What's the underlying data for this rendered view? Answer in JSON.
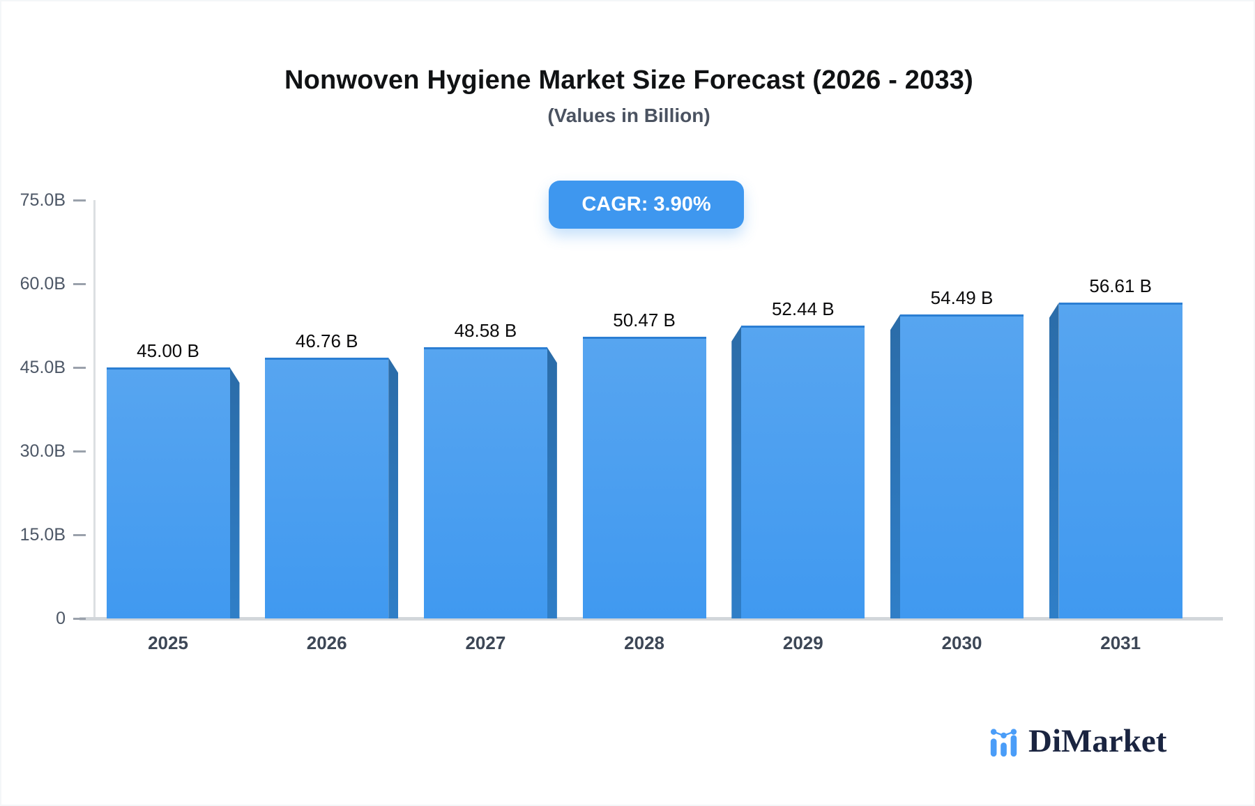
{
  "header": {
    "title": "Nonwoven Hygiene Market Size Forecast (2026 - 2033)",
    "subtitle": "(Values in Billion)"
  },
  "badge": {
    "label": "CAGR: 3.90%"
  },
  "chart_data": {
    "type": "bar",
    "title": "Nonwoven Hygiene Market Size Forecast (2026 - 2033)",
    "subtitle": "(Values in Billion)",
    "xlabel": "",
    "ylabel": "",
    "unit": "Billion",
    "categories": [
      "2025",
      "2026",
      "2027",
      "2028",
      "2029",
      "2030",
      "2031"
    ],
    "values": [
      45.0,
      46.76,
      48.58,
      50.47,
      52.44,
      54.49,
      56.61
    ],
    "value_labels": [
      "45.00 B",
      "46.76 B",
      "48.58 B",
      "50.47 B",
      "52.44 B",
      "54.49 B",
      "56.61 B"
    ],
    "ylim": [
      0,
      75
    ],
    "y_ticks": [
      {
        "label": "75.0B",
        "value": 75
      },
      {
        "label": "60.0B",
        "value": 60
      },
      {
        "label": "45.0B",
        "value": 45
      },
      {
        "label": "30.0B",
        "value": 30
      },
      {
        "label": "15.0B",
        "value": 15
      },
      {
        "label": "0",
        "value": 0
      }
    ],
    "grid": false,
    "legend": "none"
  },
  "colors": {
    "bar_top": "#57a5f0",
    "bar_bottom": "#4099f0",
    "bar_edge": "#2b7ed3",
    "bar_side_top": "#2b6ca8",
    "bar_side_bottom": "#2f7ec7",
    "badge_bg": "#3e97ef",
    "accent": "#3e97ef",
    "logo_blue": "#4a9df8",
    "logo_navy": "#1a2440"
  },
  "branding": {
    "name": "DiMarket",
    "icon": "bar-chart-logo-icon"
  }
}
